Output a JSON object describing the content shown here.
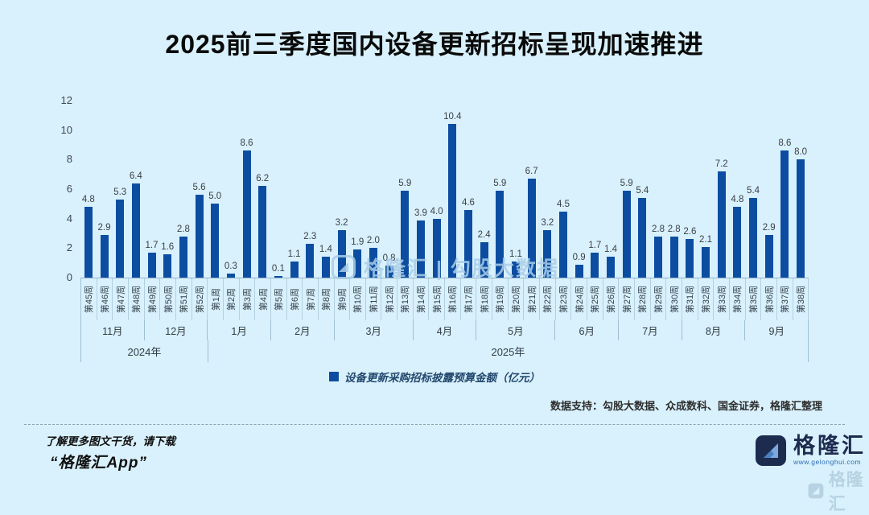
{
  "title": "2025前三季度国内设备更新招标呈现加速推进",
  "chart_data": {
    "type": "bar",
    "title": "2025前三季度国内设备更新招标呈现加速推进",
    "legend": "设备更新采购招标披露预算金额（亿元）",
    "legend_position": "bottom-center",
    "grid": false,
    "ylim": [
      0,
      12
    ],
    "yticks": [
      0,
      2,
      4,
      6,
      8,
      10,
      12
    ],
    "bar_color": "#0C4DA2",
    "years": [
      {
        "label": "2024年",
        "months": [
          {
            "label": "11月",
            "weeks": [
              "第45周",
              "第46周",
              "第47周",
              "第48周"
            ],
            "values": [
              4.8,
              2.9,
              5.3,
              6.4
            ]
          },
          {
            "label": "12月",
            "weeks": [
              "第49周",
              "第50周",
              "第51周",
              "第52周"
            ],
            "values": [
              1.7,
              1.6,
              2.8,
              5.6
            ]
          }
        ]
      },
      {
        "label": "2025年",
        "months": [
          {
            "label": "1月",
            "weeks": [
              "第1周",
              "第2周",
              "第3周",
              "第4周"
            ],
            "values": [
              5.0,
              0.3,
              8.6,
              6.2
            ]
          },
          {
            "label": "2月",
            "weeks": [
              "第5周",
              "第6周",
              "第7周",
              "第8周"
            ],
            "values": [
              0.1,
              1.1,
              2.3,
              1.4
            ]
          },
          {
            "label": "3月",
            "weeks": [
              "第9周",
              "第10周",
              "第11周",
              "第12周",
              "第13周"
            ],
            "values": [
              3.2,
              1.9,
              2.0,
              0.8,
              5.9
            ]
          },
          {
            "label": "4月",
            "weeks": [
              "第14周",
              "第15周",
              "第16周",
              "第17周"
            ],
            "values": [
              3.9,
              4.0,
              10.4,
              4.6
            ]
          },
          {
            "label": "5月",
            "weeks": [
              "第18周",
              "第19周",
              "第20周",
              "第21周",
              "第22周"
            ],
            "values": [
              2.4,
              5.9,
              1.1,
              6.7,
              3.2
            ]
          },
          {
            "label": "6月",
            "weeks": [
              "第23周",
              "第24周",
              "第25周",
              "第26周"
            ],
            "values": [
              4.5,
              0.9,
              1.7,
              1.4
            ]
          },
          {
            "label": "7月",
            "weeks": [
              "第27周",
              "第28周",
              "第29周",
              "第30周"
            ],
            "values": [
              5.9,
              5.4,
              2.8,
              2.8
            ]
          },
          {
            "label": "8月",
            "weeks": [
              "第31周",
              "第32周",
              "第33周",
              "第34周"
            ],
            "values": [
              2.6,
              2.1,
              7.2,
              4.8
            ]
          },
          {
            "label": "9月",
            "weeks": [
              "第35周",
              "第36周",
              "第37周",
              "第38周"
            ],
            "values": [
              5.4,
              2.9,
              8.6,
              8.0
            ]
          }
        ]
      }
    ]
  },
  "watermark_center": "格隆汇 | 勾股大数据",
  "watermark_corner": "格隆汇",
  "source_note": "数据支持：勾股大数据、众成数科、国金证券，格隆汇整理",
  "footer": {
    "line1": "了解更多图文干货，请下载",
    "line2": "“格隆汇App”",
    "logo_name": "格隆汇",
    "logo_url": "www.gelonghui.com"
  },
  "colors": {
    "background": "#D9F1FC",
    "bar": "#0C4DA2",
    "logo_navy": "#1D2B4F",
    "link_blue": "#2E6CB5"
  }
}
